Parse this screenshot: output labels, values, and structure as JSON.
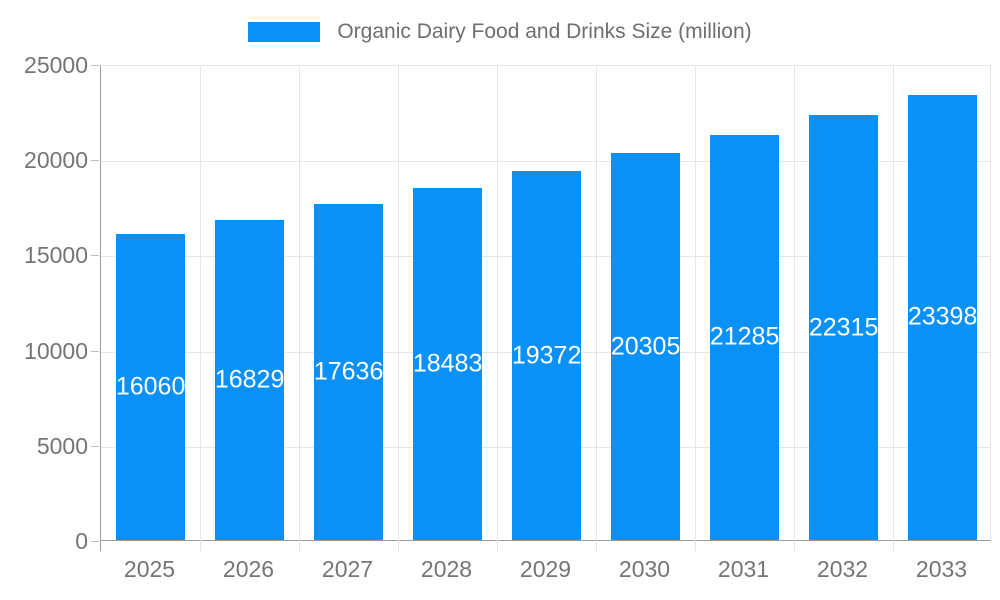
{
  "chart_data": {
    "type": "bar",
    "title": "",
    "legend": "Organic Dairy Food and Drinks Size (million)",
    "legend_position": "top-center",
    "categories": [
      "2025",
      "2026",
      "2027",
      "2028",
      "2029",
      "2030",
      "2031",
      "2032",
      "2033"
    ],
    "series": [
      {
        "name": "Organic Dairy Food and Drinks Size (million)",
        "values": [
          16060,
          16829,
          17636,
          18483,
          19372,
          20305,
          21285,
          22315,
          23398
        ]
      }
    ],
    "data_labels": [
      "16060",
      "16829",
      "17636",
      "18483",
      "19372",
      "20305",
      "21285",
      "22315",
      "23398"
    ],
    "xlabel": "",
    "ylabel": "",
    "ylim": [
      0,
      25000
    ],
    "yticks": [
      0,
      5000,
      10000,
      15000,
      20000,
      25000
    ],
    "ytick_labels": [
      "0",
      "5000",
      "10000",
      "15000",
      "20000",
      "25000"
    ],
    "grid": true,
    "colors": {
      "bar": "#0991f8",
      "bar_label_text": "#ffffff",
      "axis_line": "#9a9a9a",
      "gridline": "#e6e6e6",
      "axis_text": "#757575",
      "legend_text": "#6e6e6e",
      "background": "#ffffff"
    }
  }
}
